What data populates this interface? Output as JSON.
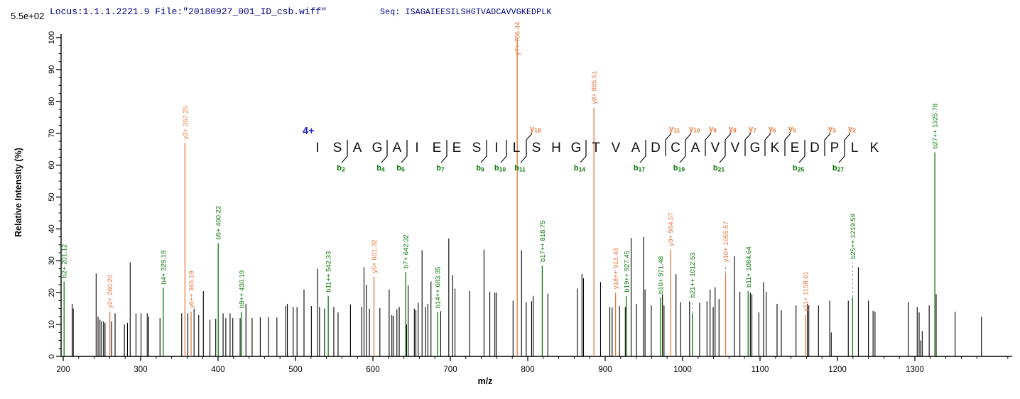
{
  "header": {
    "locus_file": "Locus:1.1.1.2221.9 File:\"20180927_001_ID_csb.wiff\"",
    "seq_prefix": "Seq:",
    "sequence": "ISAGAIEESILSHGTVADCAVVGKEDPLK"
  },
  "axes": {
    "y_title": "Relative  Intensity (%)",
    "y_scale_note": "5.5e+02",
    "y_ticks": [
      0,
      10,
      20,
      30,
      40,
      50,
      60,
      70,
      80,
      90,
      100
    ],
    "y_minor_step": 2.5,
    "x_title": "m/z",
    "x_ticks": [
      200,
      300,
      400,
      500,
      600,
      700,
      800,
      900,
      1000,
      1100,
      1200,
      1300
    ],
    "x_minor_step": 20,
    "x_domain": [
      197,
      1430
    ]
  },
  "precursor": {
    "charge_label": "4+"
  },
  "colors": {
    "b_ion": "#0A7A0A",
    "y_ion": "#E57940",
    "peak": "#000000",
    "header_navy": "#00008B",
    "charge_blue": "#2222CC",
    "leader_gray": "#999999"
  },
  "sequence_panel": {
    "residues": [
      "I",
      "S",
      "A",
      "G",
      "A",
      "I",
      "E",
      "E",
      "S",
      "I",
      "L",
      "S",
      "H",
      "G",
      "T",
      "V",
      "A",
      "D",
      "C",
      "A",
      "V",
      "V",
      "G",
      "K",
      "E",
      "D",
      "P",
      "L",
      "K"
    ],
    "cleavages": [
      {
        "after": 2,
        "b": "b2"
      },
      {
        "after": 4,
        "b": "b4"
      },
      {
        "after": 5,
        "b": "b5"
      },
      {
        "after": 7,
        "b": "b7"
      },
      {
        "after": 9,
        "b": "b9"
      },
      {
        "after": 10,
        "b": "b10"
      },
      {
        "after": 11,
        "b": "b11",
        "y": "y18"
      },
      {
        "after": 14,
        "b": "b14"
      },
      {
        "after": 17,
        "b": "b17"
      },
      {
        "after": 18,
        "y": "y11"
      },
      {
        "after": 19,
        "b": "b19",
        "y": "y10"
      },
      {
        "after": 20,
        "y": "y9"
      },
      {
        "after": 21,
        "b": "b21",
        "y": "y8"
      },
      {
        "after": 22,
        "y": "y7"
      },
      {
        "after": 23,
        "y": "y6"
      },
      {
        "after": 24,
        "y": "y5"
      },
      {
        "after": 25,
        "b": "b25"
      },
      {
        "after": 26,
        "y": "y3"
      },
      {
        "after": 27,
        "b": "b27",
        "y": "y2"
      }
    ]
  },
  "chart_data": {
    "type": "ms2-peak-spectrum",
    "title": "MS/MS fragment ion spectrum",
    "xlabel": "m/z",
    "ylabel": "Relative  Intensity (%)",
    "ylim": [
      0,
      100
    ],
    "labeled_peaks": [
      {
        "label": "b2+ 201.12",
        "ion": "b",
        "mz": 201.12,
        "intensity": 23.5
      },
      {
        "label": "y2+ 260.20",
        "ion": "y",
        "mz": 260.2,
        "intensity": 14
      },
      {
        "label": "b4+ 329.19",
        "ion": "b",
        "mz": 329.19,
        "intensity": 21.5
      },
      {
        "label": "y3+ 357.25",
        "ion": "y",
        "mz": 357.25,
        "intensity": 67
      },
      {
        "label": "y6++ 365.19",
        "ion": "y",
        "mz": 365.19,
        "intensity": 14
      },
      {
        "label": "b5+ 400.22",
        "ion": "b",
        "mz": 400.22,
        "intensity": 35.5
      },
      {
        "label": "b9++ 430.19",
        "ion": "b",
        "mz": 430.19,
        "intensity": 14
      },
      {
        "label": "b11++ 542.33",
        "ion": "b",
        "mz": 542.33,
        "intensity": 19
      },
      {
        "label": "y5+ 601.32",
        "ion": "y",
        "mz": 601.32,
        "intensity": 25
      },
      {
        "label": "b7+ 642.32",
        "ion": "b",
        "mz": 642.32,
        "intensity": 26.5
      },
      {
        "label": "b14++ 683.35",
        "ion": "b",
        "mz": 683.35,
        "intensity": 14
      },
      {
        "label": "y7+ 786.44",
        "ion": "y",
        "mz": 786.44,
        "intensity": 100
      },
      {
        "label": "b17++ 818.75",
        "ion": "b",
        "mz": 818.75,
        "intensity": 28.5
      },
      {
        "label": "y8+ 885.51",
        "ion": "y",
        "mz": 885.51,
        "intensity": 78
      },
      {
        "label": "y18++ 913.43",
        "ion": "y",
        "mz": 913.43,
        "intensity": 20
      },
      {
        "label": "b19++ 927.45",
        "ion": "b",
        "mz": 927.45,
        "intensity": 19
      },
      {
        "label": "b10+ 971.48",
        "ion": "b",
        "mz": 971.48,
        "intensity": 18.5
      },
      {
        "label": "y9+ 984.57",
        "ion": "y",
        "mz": 984.57,
        "intensity": 33.5
      },
      {
        "label": "b21++ 1012.53",
        "ion": "b",
        "mz": 1012.53,
        "intensity": 13.5,
        "leader": 18
      },
      {
        "label": "y10+ 1055.57",
        "ion": "y",
        "mz": 1055.57,
        "intensity": 26,
        "leader": 12
      },
      {
        "label": "b11+ 1084.64",
        "ion": "b",
        "mz": 1084.64,
        "intensity": 20.5
      },
      {
        "label": "y11+ 1158.61",
        "ion": "y",
        "mz": 1158.61,
        "intensity": 13
      },
      {
        "label": "b25++ 1219.59",
        "ion": "b",
        "mz": 1219.59,
        "intensity": 18.5,
        "leader": 50
      },
      {
        "label": "b27++ 1325.78",
        "ion": "b",
        "mz": 1325.78,
        "intensity": 64
      }
    ],
    "unlabeled_peaks": [
      [
        211.5,
        16.5
      ],
      [
        213,
        15
      ],
      [
        242.5,
        26
      ],
      [
        245,
        12.5
      ],
      [
        247.5,
        11.5
      ],
      [
        249.5,
        11
      ],
      [
        252,
        11
      ],
      [
        254,
        10.5
      ],
      [
        262.5,
        11
      ],
      [
        267,
        13.5
      ],
      [
        279,
        10
      ],
      [
        283,
        10.5
      ],
      [
        286.5,
        29.5
      ],
      [
        294,
        13.5
      ],
      [
        300.5,
        13.5
      ],
      [
        308.5,
        13.5
      ],
      [
        310.5,
        12.5
      ],
      [
        325,
        12
      ],
      [
        353,
        13.5
      ],
      [
        361,
        13.5
      ],
      [
        369,
        15
      ],
      [
        375,
        13
      ],
      [
        381,
        20.5
      ],
      [
        389.5,
        11.5
      ],
      [
        397,
        11.8
      ],
      [
        406.5,
        13.5
      ],
      [
        410,
        12
      ],
      [
        415.5,
        13.5
      ],
      [
        419,
        12
      ],
      [
        428.5,
        12
      ],
      [
        436,
        16.5
      ],
      [
        444,
        12
      ],
      [
        454.5,
        12.3
      ],
      [
        465,
        12.3
      ],
      [
        476,
        12.2
      ],
      [
        487.5,
        15.8
      ],
      [
        489.5,
        16.5
      ],
      [
        497,
        15.5
      ],
      [
        502,
        15.5
      ],
      [
        511,
        21
      ],
      [
        520.5,
        15.8
      ],
      [
        528.5,
        27.5
      ],
      [
        531,
        15.5
      ],
      [
        537.5,
        15
      ],
      [
        549.5,
        15.5
      ],
      [
        555,
        13.8
      ],
      [
        571,
        16.3
      ],
      [
        585.5,
        15.5
      ],
      [
        588.5,
        28
      ],
      [
        591.5,
        22.5
      ],
      [
        595.5,
        15
      ],
      [
        609,
        15.2
      ],
      [
        621,
        21
      ],
      [
        624.5,
        13
      ],
      [
        626.5,
        12.7
      ],
      [
        631,
        14.8
      ],
      [
        634,
        15.5
      ],
      [
        643.5,
        10
      ],
      [
        645.5,
        22.3
      ],
      [
        653.5,
        15
      ],
      [
        655.5,
        14.5
      ],
      [
        658.5,
        16.8
      ],
      [
        663.5,
        33.3
      ],
      [
        668,
        15.5
      ],
      [
        671,
        16.5
      ],
      [
        675,
        23.5
      ],
      [
        687.5,
        14.2
      ],
      [
        698,
        37
      ],
      [
        703,
        25.5
      ],
      [
        706,
        21.3
      ],
      [
        725,
        20.5
      ],
      [
        743.5,
        33.5
      ],
      [
        751,
        20.3
      ],
      [
        757.5,
        20
      ],
      [
        759.5,
        20
      ],
      [
        781,
        17.5
      ],
      [
        792,
        33.3
      ],
      [
        798,
        17
      ],
      [
        805,
        17.3
      ],
      [
        807,
        19
      ],
      [
        826,
        19.7
      ],
      [
        864,
        21.3
      ],
      [
        870,
        25.8
      ],
      [
        872,
        24.5
      ],
      [
        894,
        23.3
      ],
      [
        906,
        15.5
      ],
      [
        909,
        15.3
      ],
      [
        918.5,
        15.8
      ],
      [
        926,
        15.5
      ],
      [
        933.5,
        37.2
      ],
      [
        940.5,
        16.5
      ],
      [
        949.5,
        37.5
      ],
      [
        951.5,
        21
      ],
      [
        959.5,
        16
      ],
      [
        974,
        19.5
      ],
      [
        976,
        16
      ],
      [
        991.5,
        25.8
      ],
      [
        997.5,
        17
      ],
      [
        1009,
        17.3
      ],
      [
        1022,
        16.8
      ],
      [
        1031.5,
        17.3
      ],
      [
        1035.5,
        21
      ],
      [
        1039.5,
        15.5
      ],
      [
        1042,
        21.7
      ],
      [
        1047,
        18
      ],
      [
        1067,
        31.5
      ],
      [
        1074,
        20.3
      ],
      [
        1087.5,
        20
      ],
      [
        1089.5,
        19.5
      ],
      [
        1098.5,
        13.8
      ],
      [
        1104.5,
        23.3
      ],
      [
        1108,
        20.3
      ],
      [
        1122,
        16.5
      ],
      [
        1127.5,
        14.5
      ],
      [
        1146.5,
        16
      ],
      [
        1161,
        16.5
      ],
      [
        1163,
        16
      ],
      [
        1175.5,
        16
      ],
      [
        1190,
        17.5
      ],
      [
        1192,
        7.5
      ],
      [
        1214,
        17.5
      ],
      [
        1227,
        28
      ],
      [
        1240,
        17.5
      ],
      [
        1246,
        14.3
      ],
      [
        1248.5,
        14
      ],
      [
        1291.5,
        17
      ],
      [
        1303,
        15.5
      ],
      [
        1305.5,
        13.8
      ],
      [
        1307.5,
        5
      ],
      [
        1309.5,
        8
      ],
      [
        1318.5,
        16
      ],
      [
        1327.5,
        19.5
      ],
      [
        1352,
        14
      ],
      [
        1386,
        12.5
      ]
    ]
  }
}
